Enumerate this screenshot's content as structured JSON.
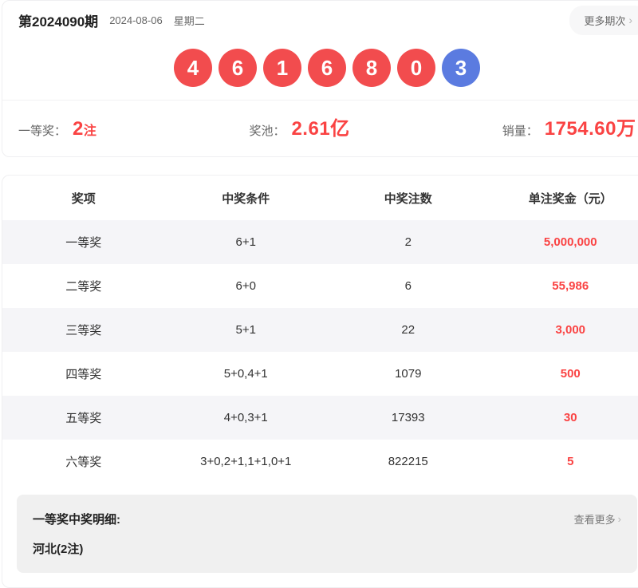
{
  "header": {
    "period": "第2024090期",
    "date": "2024-08-06",
    "weekday": "星期二",
    "more_button": "更多期次",
    "chevron": "›"
  },
  "balls": {
    "items": [
      {
        "value": "4",
        "kind": "red"
      },
      {
        "value": "6",
        "kind": "red"
      },
      {
        "value": "1",
        "kind": "red"
      },
      {
        "value": "6",
        "kind": "red"
      },
      {
        "value": "8",
        "kind": "red"
      },
      {
        "value": "0",
        "kind": "red"
      },
      {
        "value": "3",
        "kind": "blue"
      }
    ]
  },
  "stats": [
    {
      "label": "一等奖：",
      "value": "2",
      "suffix": "注"
    },
    {
      "label": "奖池：",
      "value": "2.61",
      "suffix": "亿"
    },
    {
      "label": "销量：",
      "value": "1754.60",
      "suffix": "万"
    }
  ],
  "table": {
    "headers": [
      "奖项",
      "中奖条件",
      "中奖注数",
      "单注奖金（元）"
    ],
    "rows": [
      {
        "prize": "一等奖",
        "condition": "6+1",
        "count": "2",
        "amount": "5,000,000"
      },
      {
        "prize": "二等奖",
        "condition": "6+0",
        "count": "6",
        "amount": "55,986"
      },
      {
        "prize": "三等奖",
        "condition": "5+1",
        "count": "22",
        "amount": "3,000"
      },
      {
        "prize": "四等奖",
        "condition": "5+0,4+1",
        "count": "1079",
        "amount": "500"
      },
      {
        "prize": "五等奖",
        "condition": "4+0,3+1",
        "count": "17393",
        "amount": "30"
      },
      {
        "prize": "六等奖",
        "condition": "3+0,2+1,1+1,0+1",
        "count": "822215",
        "amount": "5"
      }
    ]
  },
  "detail": {
    "title": "一等奖中奖明细:",
    "more_link": "查看更多",
    "chevron": "›",
    "content": "河北(2注)"
  },
  "colors": {
    "ball_red": "#f24c4e",
    "ball_blue": "#5b7be0",
    "accent_red": "#fa4343",
    "stripe": "#f5f5f8",
    "detail_bg": "#f0f0f0"
  }
}
